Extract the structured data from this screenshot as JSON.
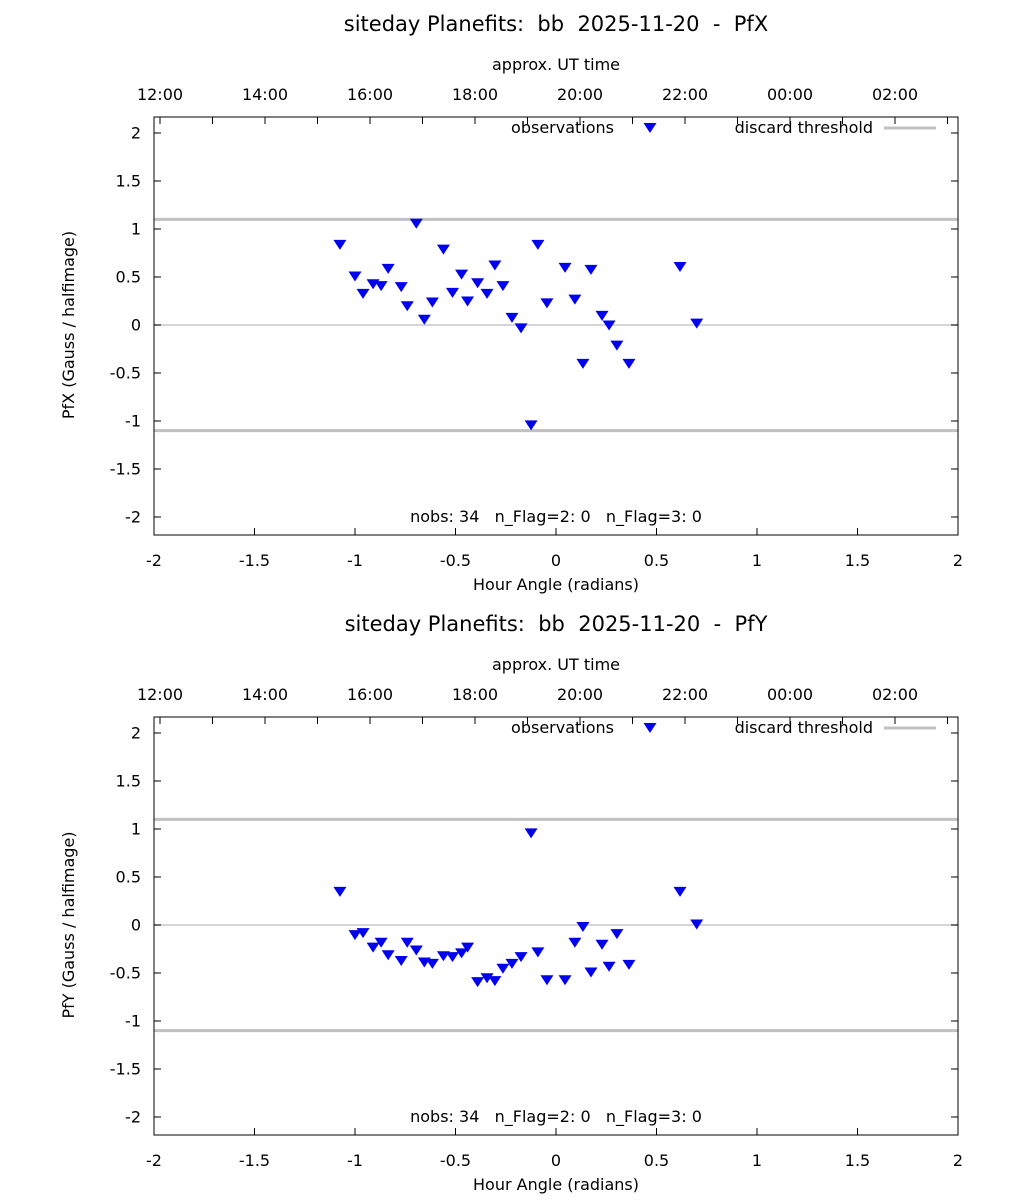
{
  "page": {
    "background": "#ffffff"
  },
  "colors": {
    "marker": "#0000ee",
    "discard_threshold_line": "#c0c0c0",
    "zero_line": "#c9c9c9",
    "axis": "#000000",
    "text": "#000000"
  },
  "chart_data": [
    {
      "type": "scatter",
      "title": "siteday Planefits:  bb  2025-11-20  -  PfX",
      "top_axis": {
        "label": "approx. UT time",
        "tick_labels": [
          "12:00",
          "14:00",
          "16:00",
          "18:00",
          "20:00",
          "22:00",
          "00:00",
          "02:00"
        ],
        "minor_ticks_per_hour": 1
      },
      "xlabel": "Hour Angle (radians)",
      "ylabel": "PfX (Gauss / halfimage)",
      "xlim": [
        -2,
        2
      ],
      "ylim": [
        -2,
        2
      ],
      "x_tick_labels": [
        "-2",
        "-1.5",
        "-1",
        "-0.5",
        "0",
        "0.5",
        "1",
        "1.5",
        "2"
      ],
      "y_tick_labels": [
        "2",
        "1.5",
        "1",
        "0.5",
        "0",
        "-0.5",
        "-1",
        "-1.5",
        "-2"
      ],
      "grid": false,
      "legend_position": "top-inside",
      "legend": [
        {
          "label": "observations",
          "symbol": "triangle-down-icon",
          "color": "#0000ee"
        },
        {
          "label": "discard threshold",
          "symbol": "line",
          "color": "#c0c0c0"
        }
      ],
      "discard_thresholds": [
        1.1,
        -1.1
      ],
      "zero_line": 0,
      "annotation": "nobs: 34   n_Flag=2: 0   n_Flag=3: 0",
      "series": [
        {
          "name": "observations",
          "marker": "triangle-down",
          "color": "#0000ee",
          "points": [
            [
              -1.075,
              0.84
            ],
            [
              -1.0,
              0.51
            ],
            [
              -0.96,
              0.33
            ],
            [
              -0.91,
              0.43
            ],
            [
              -0.87,
              0.41
            ],
            [
              -0.835,
              0.59
            ],
            [
              -0.77,
              0.4
            ],
            [
              -0.74,
              0.2
            ],
            [
              -0.695,
              1.06
            ],
            [
              -0.655,
              0.06
            ],
            [
              -0.615,
              0.24
            ],
            [
              -0.56,
              0.79
            ],
            [
              -0.515,
              0.34
            ],
            [
              -0.47,
              0.53
            ],
            [
              -0.44,
              0.25
            ],
            [
              -0.39,
              0.44
            ],
            [
              -0.343,
              0.33
            ],
            [
              -0.304,
              0.625
            ],
            [
              -0.264,
              0.41
            ],
            [
              -0.219,
              0.08
            ],
            [
              -0.174,
              -0.03
            ],
            [
              -0.124,
              -1.04
            ],
            [
              -0.09,
              0.84
            ],
            [
              -0.045,
              0.23
            ],
            [
              0.045,
              0.6
            ],
            [
              0.094,
              0.27
            ],
            [
              0.134,
              -0.4
            ],
            [
              0.174,
              0.58
            ],
            [
              0.229,
              0.1
            ],
            [
              0.264,
              0.0
            ],
            [
              0.303,
              -0.21
            ],
            [
              0.363,
              -0.4
            ],
            [
              0.617,
              0.61
            ],
            [
              0.7,
              0.02
            ]
          ]
        }
      ]
    },
    {
      "type": "scatter",
      "title": "siteday Planefits:  bb  2025-11-20  -  PfY",
      "top_axis": {
        "label": "approx. UT time",
        "tick_labels": [
          "12:00",
          "14:00",
          "16:00",
          "18:00",
          "20:00",
          "22:00",
          "00:00",
          "02:00"
        ],
        "minor_ticks_per_hour": 1
      },
      "xlabel": "Hour Angle (radians)",
      "ylabel": "PfY (Gauss / halfimage)",
      "xlim": [
        -2,
        2
      ],
      "ylim": [
        -2,
        2
      ],
      "x_tick_labels": [
        "-2",
        "-1.5",
        "-1",
        "-0.5",
        "0",
        "0.5",
        "1",
        "1.5",
        "2"
      ],
      "y_tick_labels": [
        "2",
        "1.5",
        "1",
        "0.5",
        "0",
        "-0.5",
        "-1",
        "-1.5",
        "-2"
      ],
      "grid": false,
      "legend_position": "top-inside",
      "legend": [
        {
          "label": "observations",
          "symbol": "triangle-down-icon",
          "color": "#0000ee"
        },
        {
          "label": "discard threshold",
          "symbol": "line",
          "color": "#c0c0c0"
        }
      ],
      "discard_thresholds": [
        1.1,
        -1.1
      ],
      "zero_line": 0,
      "annotation": "nobs: 34   n_Flag=2: 0   n_Flag=3: 0",
      "series": [
        {
          "name": "observations",
          "marker": "triangle-down",
          "color": "#0000ee",
          "points": [
            [
              -1.075,
              0.35
            ],
            [
              -1.0,
              -0.1
            ],
            [
              -0.96,
              -0.08
            ],
            [
              -0.91,
              -0.23
            ],
            [
              -0.87,
              -0.18
            ],
            [
              -0.835,
              -0.31
            ],
            [
              -0.77,
              -0.37
            ],
            [
              -0.74,
              -0.18
            ],
            [
              -0.695,
              -0.26
            ],
            [
              -0.655,
              -0.385
            ],
            [
              -0.615,
              -0.4
            ],
            [
              -0.56,
              -0.32
            ],
            [
              -0.515,
              -0.33
            ],
            [
              -0.47,
              -0.29
            ],
            [
              -0.44,
              -0.23
            ],
            [
              -0.39,
              -0.59
            ],
            [
              -0.343,
              -0.55
            ],
            [
              -0.304,
              -0.58
            ],
            [
              -0.264,
              -0.45
            ],
            [
              -0.219,
              -0.4
            ],
            [
              -0.174,
              -0.33
            ],
            [
              -0.124,
              0.96
            ],
            [
              -0.09,
              -0.28
            ],
            [
              -0.045,
              -0.57
            ],
            [
              0.045,
              -0.57
            ],
            [
              0.094,
              -0.18
            ],
            [
              0.134,
              -0.015
            ],
            [
              0.174,
              -0.49
            ],
            [
              0.229,
              -0.2
            ],
            [
              0.264,
              -0.43
            ],
            [
              0.303,
              -0.09
            ],
            [
              0.363,
              -0.41
            ],
            [
              0.617,
              0.35
            ],
            [
              0.7,
              0.01
            ]
          ]
        }
      ]
    }
  ]
}
